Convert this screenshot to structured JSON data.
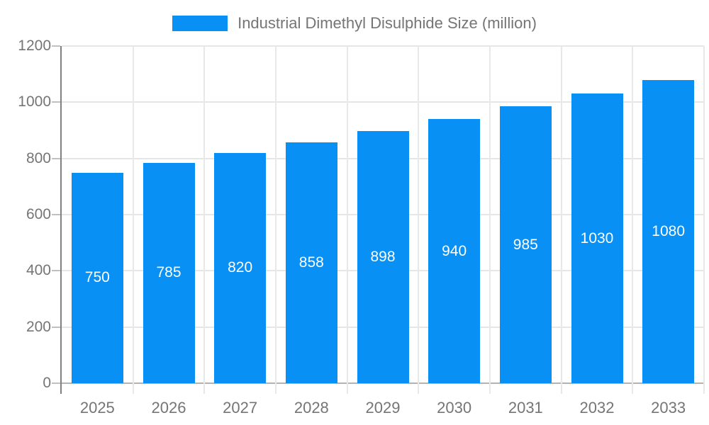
{
  "legend": {
    "label": "Industrial Dimethyl Disulphide Size (million)",
    "swatch_color": "#0990F5"
  },
  "chart_data": {
    "type": "bar",
    "title": "Industrial Dimethyl Disulphide Size (million)",
    "categories": [
      "2025",
      "2026",
      "2027",
      "2028",
      "2029",
      "2030",
      "2031",
      "2032",
      "2033"
    ],
    "values": [
      750,
      785,
      820,
      858,
      898,
      940,
      985,
      1030,
      1080
    ],
    "xlabel": "",
    "ylabel": "",
    "ylim": [
      0,
      1200
    ],
    "yticks": [
      0,
      200,
      400,
      600,
      800,
      1000,
      1200
    ],
    "grid": true,
    "legend_position": "top",
    "bar_color": "#0990F5",
    "bar_label_color": "#ffffff",
    "axis_text_color": "#757575"
  }
}
